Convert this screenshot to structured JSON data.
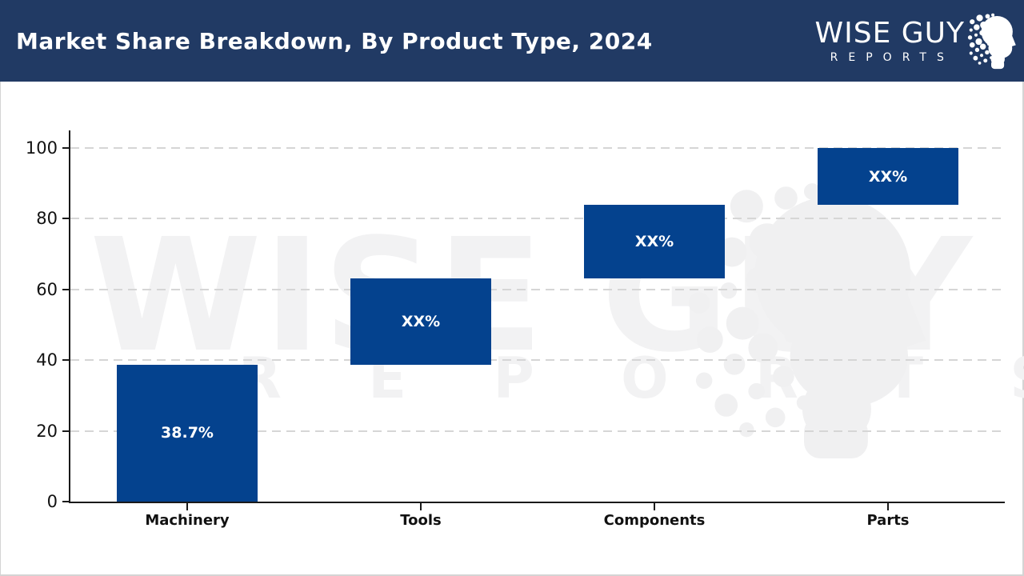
{
  "header": {
    "title": "Market Share Breakdown, By Product Type, 2024",
    "bg_color": "#213a64",
    "text_color": "#ffffff",
    "logo": {
      "line1": "WISE GUY",
      "line2": "REPORTS"
    }
  },
  "watermark": {
    "line1": "WISE GUY",
    "line2": "R E P O R T S",
    "text_color": "#f2f2f3",
    "face_color": "#f0f0f1"
  },
  "chart_data": {
    "type": "bar",
    "subtype": "waterfall",
    "title": "Market Share Breakdown, By Product Type, 2024",
    "categories": [
      "Machinery",
      "Tools",
      "Components",
      "Parts"
    ],
    "segments": [
      {
        "category": "Machinery",
        "start": 0,
        "end": 38.7,
        "label": "38.7%"
      },
      {
        "category": "Tools",
        "start": 38.7,
        "end": 63.2,
        "label": "XX%"
      },
      {
        "category": "Components",
        "start": 63.2,
        "end": 83.9,
        "label": "XX%"
      },
      {
        "category": "Parts",
        "start": 83.9,
        "end": 100,
        "label": "XX%"
      }
    ],
    "values": [
      38.7,
      24.5,
      20.7,
      16.1
    ],
    "cumulative": [
      38.7,
      63.2,
      83.9,
      100
    ],
    "yticks": [
      0,
      20,
      40,
      60,
      80,
      100
    ],
    "ylim": [
      0,
      105
    ],
    "grid": "dashed horizontal gridlines",
    "legend": "none",
    "xlabel": "",
    "ylabel": "",
    "bar_color": "#04428e",
    "bar_label_color": "#ffffff",
    "axis_color": "#1a1a1a",
    "grid_color": "#d6d6d6"
  }
}
